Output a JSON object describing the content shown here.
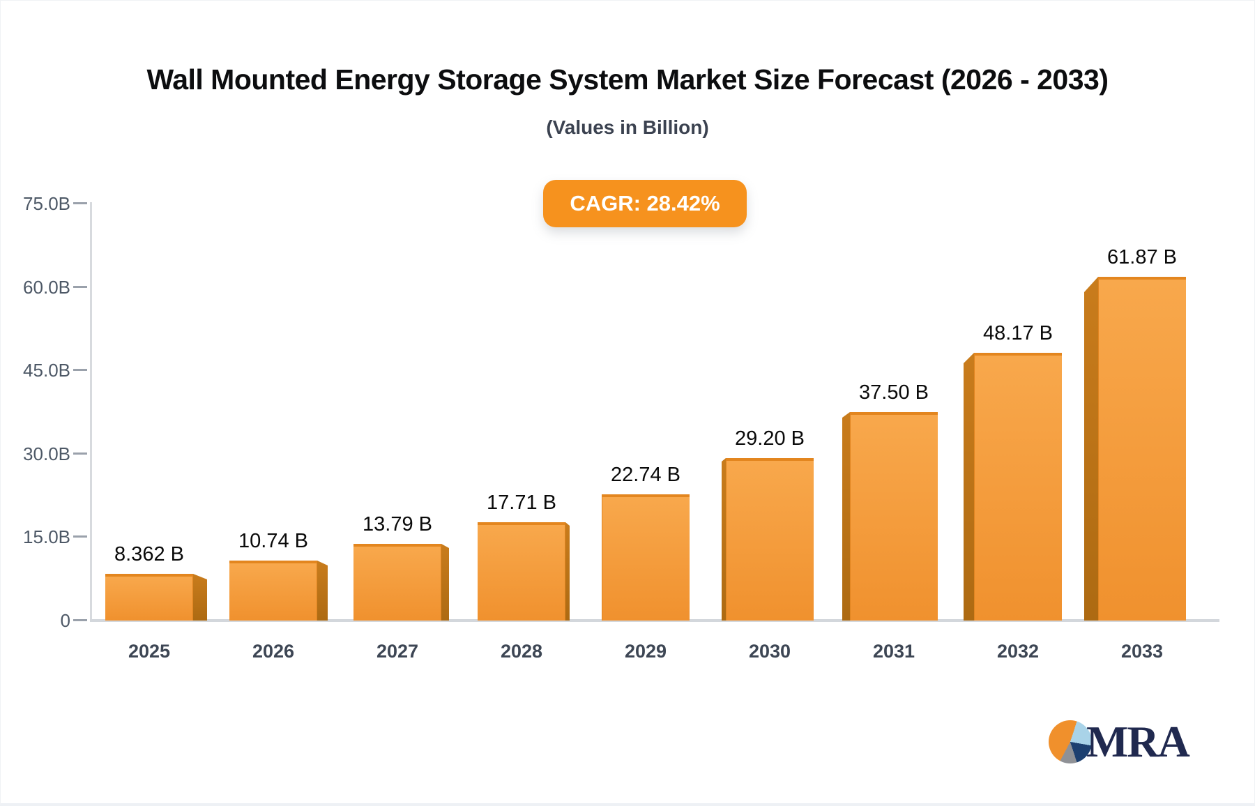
{
  "header": {
    "title": "Wall Mounted Energy Storage System Market Size Forecast (2026 - 2033)",
    "subtitle": "(Values in Billion)",
    "cagr_label": "CAGR: 28.42%"
  },
  "logo": {
    "text": "MRA"
  },
  "colors": {
    "badge_bg": "#f6921e",
    "bar_face_top": "#f8a84c",
    "bar_face_bottom": "#f0912e",
    "bar_top_edge": "#e3861f",
    "bar_outline": "#e08420",
    "bar_side_top": "#c97c1c",
    "bar_side_bottom": "#ad6a12",
    "axis_line": "#d7dade",
    "baseline": "#d3d7dc",
    "tick_dash": "#9aa1ab",
    "tick_text": "#4d5866",
    "year_text": "#3d4654",
    "value_text": "#0a0a0a",
    "logo_navy": "#20294f",
    "pie_orange": "#f0902c",
    "pie_lightblue": "#a9d3e8",
    "pie_navy": "#1d4070",
    "pie_gray": "#8f9196"
  },
  "chart_data": {
    "type": "bar",
    "title": "Wall Mounted Energy Storage System Market Size Forecast (2026 - 2033)",
    "subtitle": "(Values in Billion)",
    "annotation": "CAGR: 28.42%",
    "categories": [
      "2025",
      "2026",
      "2027",
      "2028",
      "2029",
      "2030",
      "2031",
      "2032",
      "2033"
    ],
    "values": [
      8.362,
      10.74,
      13.79,
      17.71,
      22.74,
      29.2,
      37.5,
      48.17,
      61.87
    ],
    "value_labels": [
      "8.362 B",
      "10.74 B",
      "13.79 B",
      "17.71 B",
      "22.74 B",
      "29.20 B",
      "37.50 B",
      "48.17 B",
      "61.87 B"
    ],
    "xlabel": "",
    "ylabel": "",
    "ylim": [
      0,
      75
    ],
    "yticks": [
      {
        "value": 0,
        "label": "0"
      },
      {
        "value": 15,
        "label": "15.0B"
      },
      {
        "value": 30,
        "label": "30.0B"
      },
      {
        "value": 45,
        "label": "45.0B"
      },
      {
        "value": 60,
        "label": "60.0B"
      },
      {
        "value": 75,
        "label": "75.0B"
      }
    ],
    "grid": false,
    "legend": "none",
    "bar_style": "3d-orange-gradient"
  }
}
